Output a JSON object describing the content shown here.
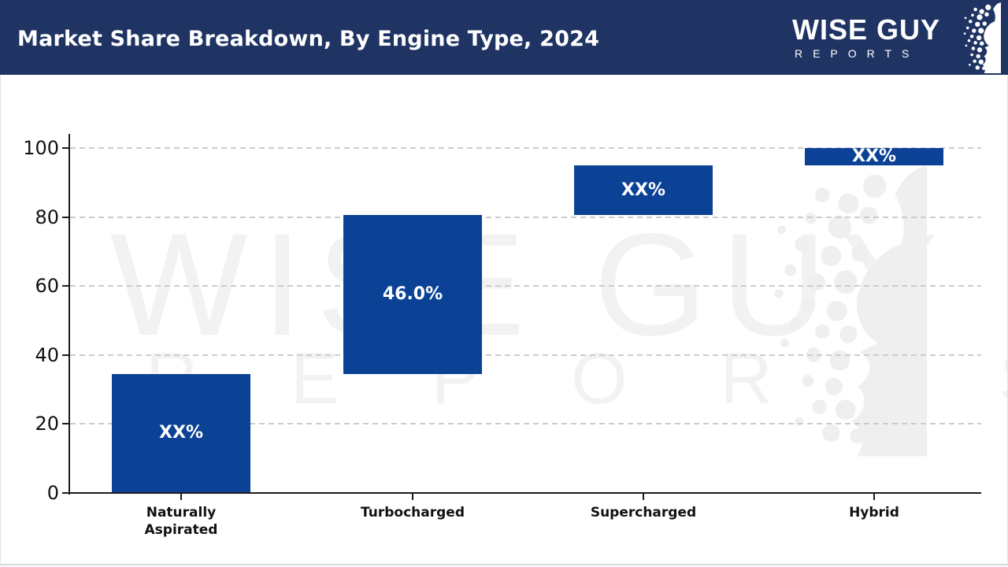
{
  "header": {
    "title": "Market Share Breakdown, By Engine Type, 2024",
    "bg_color": "#203464",
    "logo": {
      "line1": "WISE GUY",
      "line2": "REPORTS"
    }
  },
  "watermark": {
    "line1": "WISE GUY",
    "line2": "R E P O R T S"
  },
  "chart_data": {
    "type": "bar",
    "subtype": "waterfall",
    "title": "Market Share Breakdown, By Engine Type, 2024",
    "categories": [
      "Naturally\nAspirated",
      "Turbocharged",
      "Supercharged",
      "Hybrid"
    ],
    "segments": [
      {
        "category": "Naturally Aspirated",
        "start": 0,
        "end": 34.5,
        "label": "XX%"
      },
      {
        "category": "Turbocharged",
        "start": 34.5,
        "end": 80.5,
        "label": "46.0%"
      },
      {
        "category": "Supercharged",
        "start": 80.5,
        "end": 95.0,
        "label": "XX%"
      },
      {
        "category": "Hybrid",
        "start": 95.0,
        "end": 100.0,
        "label": "XX%"
      }
    ],
    "yticks": [
      0,
      20,
      40,
      60,
      80,
      100
    ],
    "ylim": [
      0,
      104
    ],
    "xlabel": "",
    "ylabel": "",
    "bar_color": "#0b4296",
    "grid": "horizontal-dashed",
    "grid_color": "#cccccc",
    "axis_color": "#1c1c1c",
    "legend": "none"
  }
}
